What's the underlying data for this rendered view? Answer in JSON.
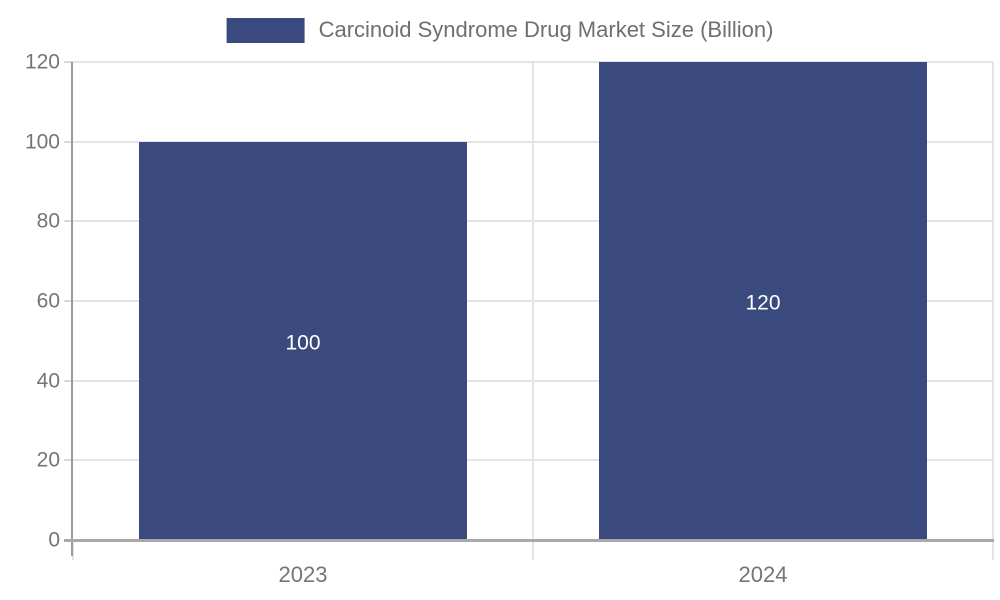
{
  "legend": {
    "label": "Carcinoid Syndrome Drug Market Size (Billion)"
  },
  "chart_data": {
    "type": "bar",
    "title": "",
    "xlabel": "",
    "ylabel": "",
    "categories": [
      "2023",
      "2024"
    ],
    "series": [
      {
        "name": "Carcinoid Syndrome Drug Market Size (Billion)",
        "values": [
          100,
          120
        ],
        "data_labels": [
          "100",
          "120"
        ]
      }
    ],
    "ylim": [
      0,
      120
    ],
    "yticks": [
      0,
      20,
      40,
      60,
      80,
      100,
      120
    ],
    "grid": "on",
    "legend_position": "top-center",
    "colors": {
      "bar": "#3a4a7e",
      "bar_label_text": "#ffffff",
      "axis_text": "#757575",
      "legend_text": "#6f6f6f",
      "gridline": "#e4e4e4",
      "y_axis_line": "#9b9b9b",
      "x_axis_line": "#a9a9a9",
      "background": "#ffffff"
    }
  }
}
